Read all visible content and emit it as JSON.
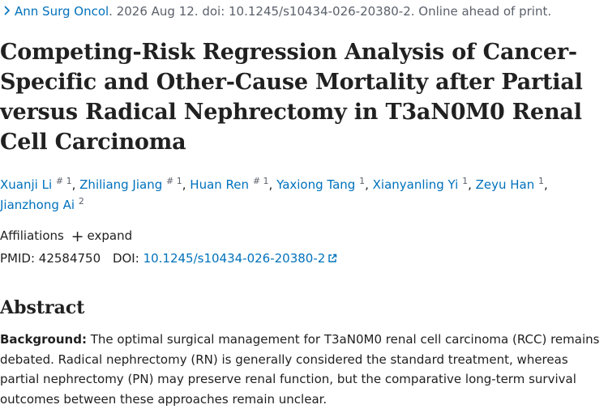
{
  "citation": {
    "journal": "Ann Surg Oncol",
    "details": ". 2026 Aug 12. doi: 10.1245/s10434-026-20380-2. Online ahead of print."
  },
  "title": "Competing-Risk Regression Analysis of Cancer-Specific and Other-Cause Mortality after Partial versus Radical Nephrectomy in T3aN0M0 Renal Cell Carcinoma",
  "authors": [
    {
      "name": "Xuanji Li",
      "sup": "# 1"
    },
    {
      "name": "Zhiliang Jiang",
      "sup": "# 1"
    },
    {
      "name": "Huan Ren",
      "sup": "# 1"
    },
    {
      "name": "Yaxiong Tang",
      "sup": "1"
    },
    {
      "name": "Xianyanling Yi",
      "sup": "1"
    },
    {
      "name": "Zeyu Han",
      "sup": "1"
    },
    {
      "name": "Jianzhong Ai",
      "sup": "2"
    }
  ],
  "affiliations": {
    "label": "Affiliations",
    "expand": "expand"
  },
  "ids": {
    "pmid_label": "PMID:",
    "pmid": "42584750",
    "doi_label": "DOI:",
    "doi": "10.1245/s10434-026-20380-2"
  },
  "abstract": {
    "heading": "Abstract",
    "background_label": "Background:",
    "background_text": "The optimal surgical management for T3aN0M0 renal cell carcinoma (RCC) remains debated. Radical nephrectomy (RN) is generally considered the standard treatment, whereas partial nephrectomy (PN) may preserve renal function, but the comparative long-term survival outcomes between these approaches remain unclear."
  },
  "colors": {
    "link": "#0071bc",
    "muted": "#5b616b",
    "text": "#212121"
  }
}
